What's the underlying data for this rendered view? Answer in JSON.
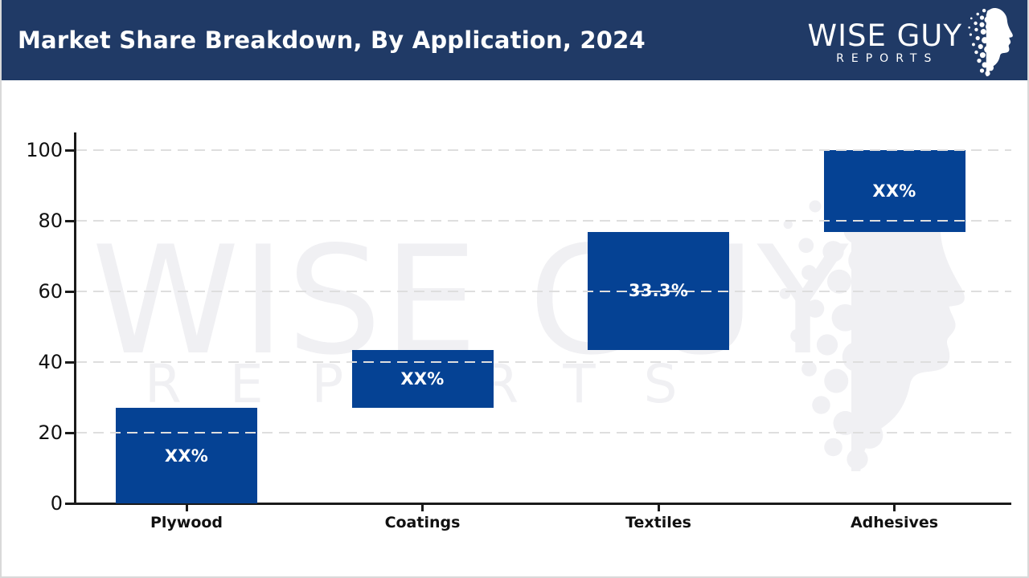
{
  "header": {
    "title": "Market Share Breakdown, By Application, 2024",
    "logo": {
      "line1": "WISE GUY",
      "line2": "REPORTS"
    }
  },
  "watermark": {
    "line1": "WISE GUY",
    "line2": "REPORTS"
  },
  "chart_data": {
    "type": "bar",
    "subtype": "floating-waterfall",
    "title": "Market Share Breakdown, By Application, 2024",
    "categories": [
      "Plywood",
      "Coatings",
      "Textiles",
      "Adhesives"
    ],
    "segments": [
      {
        "category": "Plywood",
        "start": 0,
        "end": 27,
        "label": "XX%"
      },
      {
        "category": "Coatings",
        "start": 27,
        "end": 43.5,
        "label": "XX%"
      },
      {
        "category": "Textiles",
        "start": 43.5,
        "end": 76.8,
        "label": "33.3%"
      },
      {
        "category": "Adhesives",
        "start": 76.8,
        "end": 100,
        "label": "XX%"
      }
    ],
    "yticks": [
      0,
      20,
      40,
      60,
      80,
      100
    ],
    "ylim": [
      0,
      105
    ],
    "xlabel": "",
    "ylabel": "",
    "grid": "dashed-horizontal-over-bars",
    "legend": "none",
    "colors": {
      "bar": "#054294",
      "header_band": "#203a66",
      "value_label": "#ffffff",
      "gridline": "#dedede",
      "axis": "#1a1a1a",
      "watermark": "#f0f0f3"
    }
  }
}
